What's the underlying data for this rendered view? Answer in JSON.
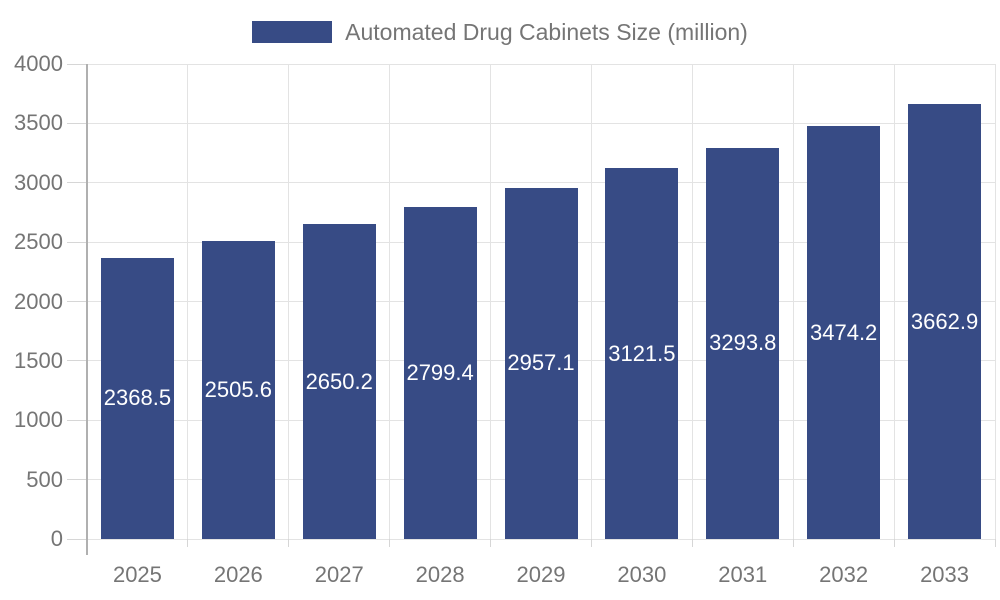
{
  "legend": {
    "position": "top-center",
    "items": [
      {
        "label": "Automated Drug Cabinets Size (million)",
        "color": "#374b85"
      }
    ]
  },
  "chart_data": {
    "type": "bar",
    "title": "Automated Drug Cabinets Size (million)",
    "categories": [
      "2025",
      "2026",
      "2027",
      "2028",
      "2029",
      "2030",
      "2031",
      "2032",
      "2033"
    ],
    "series": [
      {
        "name": "Automated Drug Cabinets Size (million)",
        "values": [
          2368.5,
          2505.6,
          2650.2,
          2799.4,
          2957.1,
          3121.5,
          3293.8,
          3474.2,
          3662.9
        ]
      }
    ],
    "value_labels": [
      "2368.5",
      "2505.6",
      "2650.2",
      "2799.4",
      "2957.1",
      "3121.5",
      "3293.8",
      "3474.2",
      "3662.9"
    ],
    "xlabel": "",
    "ylabel": "",
    "ylim": [
      0,
      4000
    ],
    "yticks": [
      0,
      500,
      1000,
      1500,
      2000,
      2500,
      3000,
      3500,
      4000
    ],
    "grid": true,
    "legend_position": "top-center",
    "colors": {
      "bar": "#374b85",
      "grid": "#e3e3e3",
      "axis": "#b0b0b0",
      "tick": "#d6d6d6",
      "tick_text": "#757575",
      "value_label": "#ffffff",
      "background": "#ffffff"
    }
  }
}
